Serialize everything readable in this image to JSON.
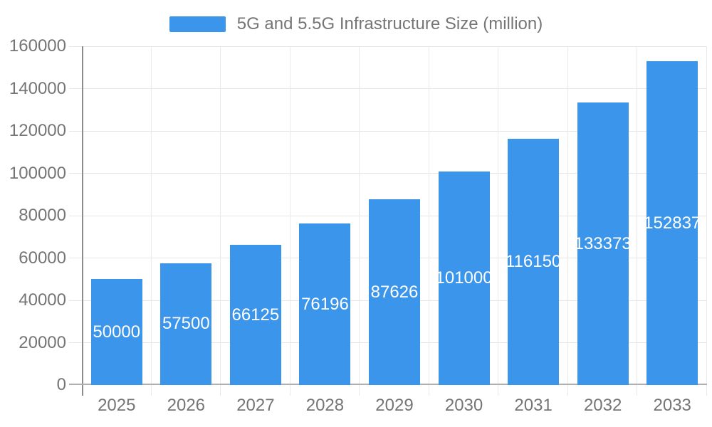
{
  "chart_data": {
    "type": "bar",
    "title": "5G and 5.5G Infrastructure Size (million)",
    "categories": [
      "2025",
      "2026",
      "2027",
      "2028",
      "2029",
      "2030",
      "2031",
      "2032",
      "2033"
    ],
    "values": [
      50000,
      57500,
      66125,
      76196,
      87626,
      101000,
      116150,
      133373,
      152837
    ],
    "bar_labels": [
      "50000",
      "57500",
      "66125",
      "76196",
      "87626",
      "101000",
      "116150",
      "133373",
      "152837"
    ],
    "yticks": [
      "0",
      "20000",
      "40000",
      "60000",
      "80000",
      "100000",
      "120000",
      "140000",
      "160000"
    ],
    "ylim": [
      0,
      160000
    ],
    "ytick_step": 20000,
    "xlabel": "",
    "ylabel": "",
    "grid": true,
    "legend_position": "top-center",
    "bar_value_labels_inside": true,
    "colors": {
      "bar": "#3b95ea",
      "bar_label": "#ffffff",
      "axis_text": "#757575",
      "grid_line": "#e6e6e6",
      "vertical_grid_line": "#e9e9e9",
      "axis_line": "#8c8c8c",
      "baseline": "#b0b0b0",
      "background": "#ffffff"
    }
  }
}
